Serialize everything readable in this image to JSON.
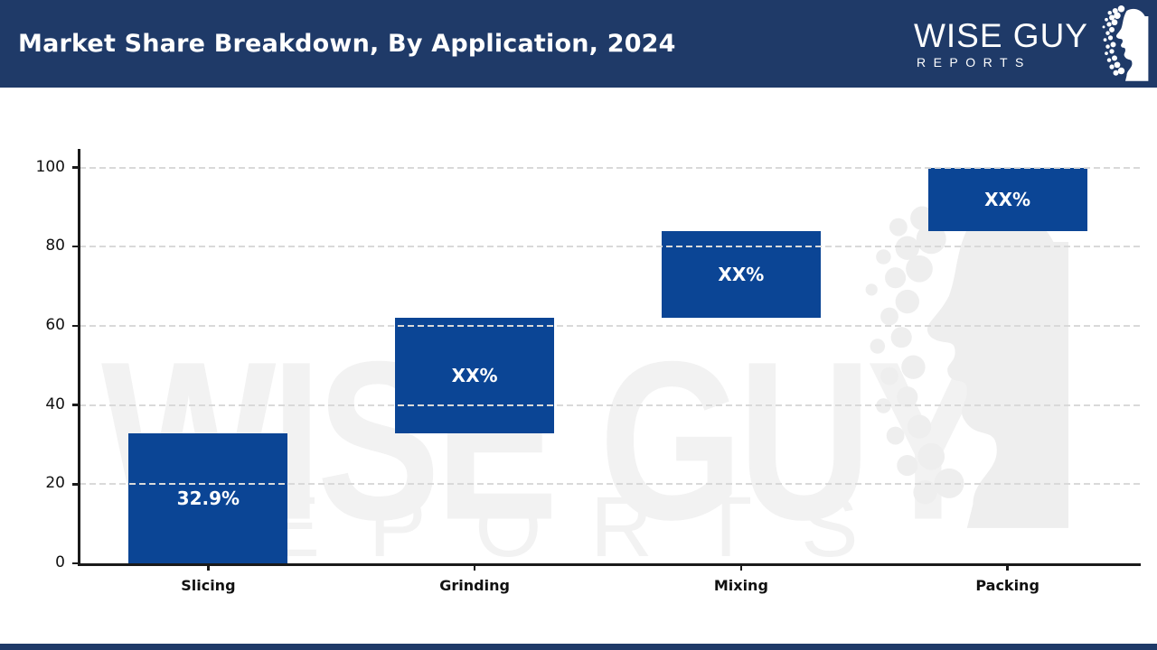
{
  "header": {
    "title": "Market Share Breakdown, By Application, 2024",
    "logo": {
      "brand_top": "WISE GUY",
      "brand_bottom": "REPORTS"
    }
  },
  "watermark": {
    "brand_top": "WISE GUY",
    "brand_bottom": "REPORTS"
  },
  "chart_data": {
    "type": "bar",
    "subtype": "waterfall",
    "title": "Market Share Breakdown, By Application, 2024",
    "categories": [
      "Slicing",
      "Grinding",
      "Mixing",
      "Packing"
    ],
    "series": [
      {
        "name": "Market share by application (%)",
        "segments": [
          {
            "category": "Slicing",
            "start": 0,
            "end": 32.9,
            "label": "32.9%"
          },
          {
            "category": "Grinding",
            "start": 32.9,
            "end": 62,
            "label": "XX%"
          },
          {
            "category": "Mixing",
            "start": 62,
            "end": 84,
            "label": "XX%"
          },
          {
            "category": "Packing",
            "start": 84,
            "end": 100,
            "label": "XX%"
          }
        ]
      }
    ],
    "xlabel": "",
    "ylabel": "",
    "ylim": [
      0,
      100
    ],
    "yticks": [
      0,
      20,
      40,
      60,
      80,
      100
    ],
    "grid": true,
    "legend": false,
    "colors": {
      "bar": "#0b4595",
      "bar_label": "#ffffff",
      "grid": "#d9d9d9",
      "axis": "#1a1a1a",
      "tick_label": "#111111",
      "header_bg": "#1f3a68",
      "watermark": "#f2f2f2"
    }
  }
}
